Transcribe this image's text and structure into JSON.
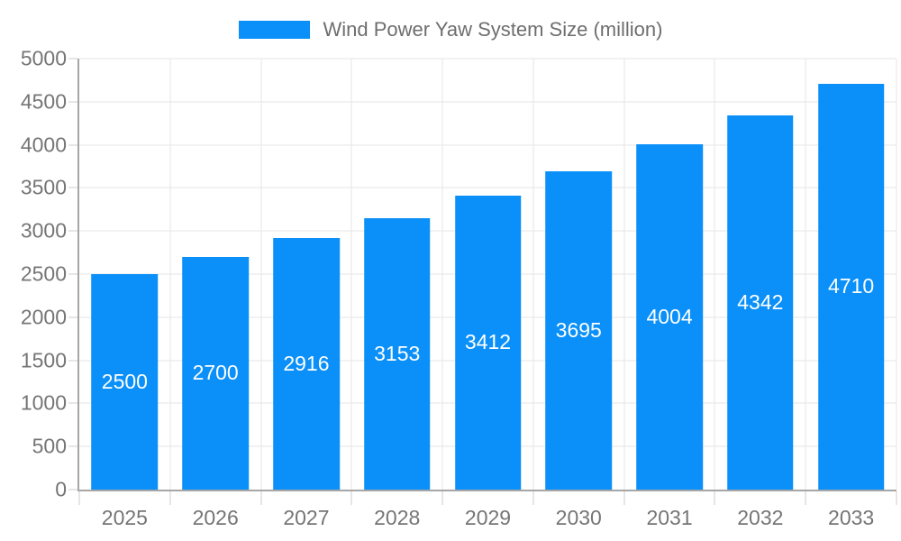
{
  "chart_data": {
    "type": "bar",
    "title": "Wind Power Yaw System Size (million)",
    "legend": {
      "label": "Wind Power Yaw System Size (million)",
      "position": "top-center"
    },
    "categories": [
      "2025",
      "2026",
      "2027",
      "2028",
      "2029",
      "2030",
      "2031",
      "2032",
      "2033"
    ],
    "values": [
      2500,
      2700,
      2916,
      3153,
      3412,
      3695,
      4004,
      4342,
      4710
    ],
    "xlabel": "",
    "ylabel": "",
    "ylim": [
      0,
      5000
    ],
    "ytick_step": 500,
    "grid": true,
    "value_labels": "inside-center-white"
  },
  "colors": {
    "bar": "#0a90f8",
    "axis_line": "#a6a6a6",
    "gridline": "#e6e6e6",
    "tick": "#cccccc",
    "axis_text": "#757575",
    "legend_text": "#6e6e6e",
    "value_label_text": "#ffffff",
    "background": "#ffffff"
  }
}
